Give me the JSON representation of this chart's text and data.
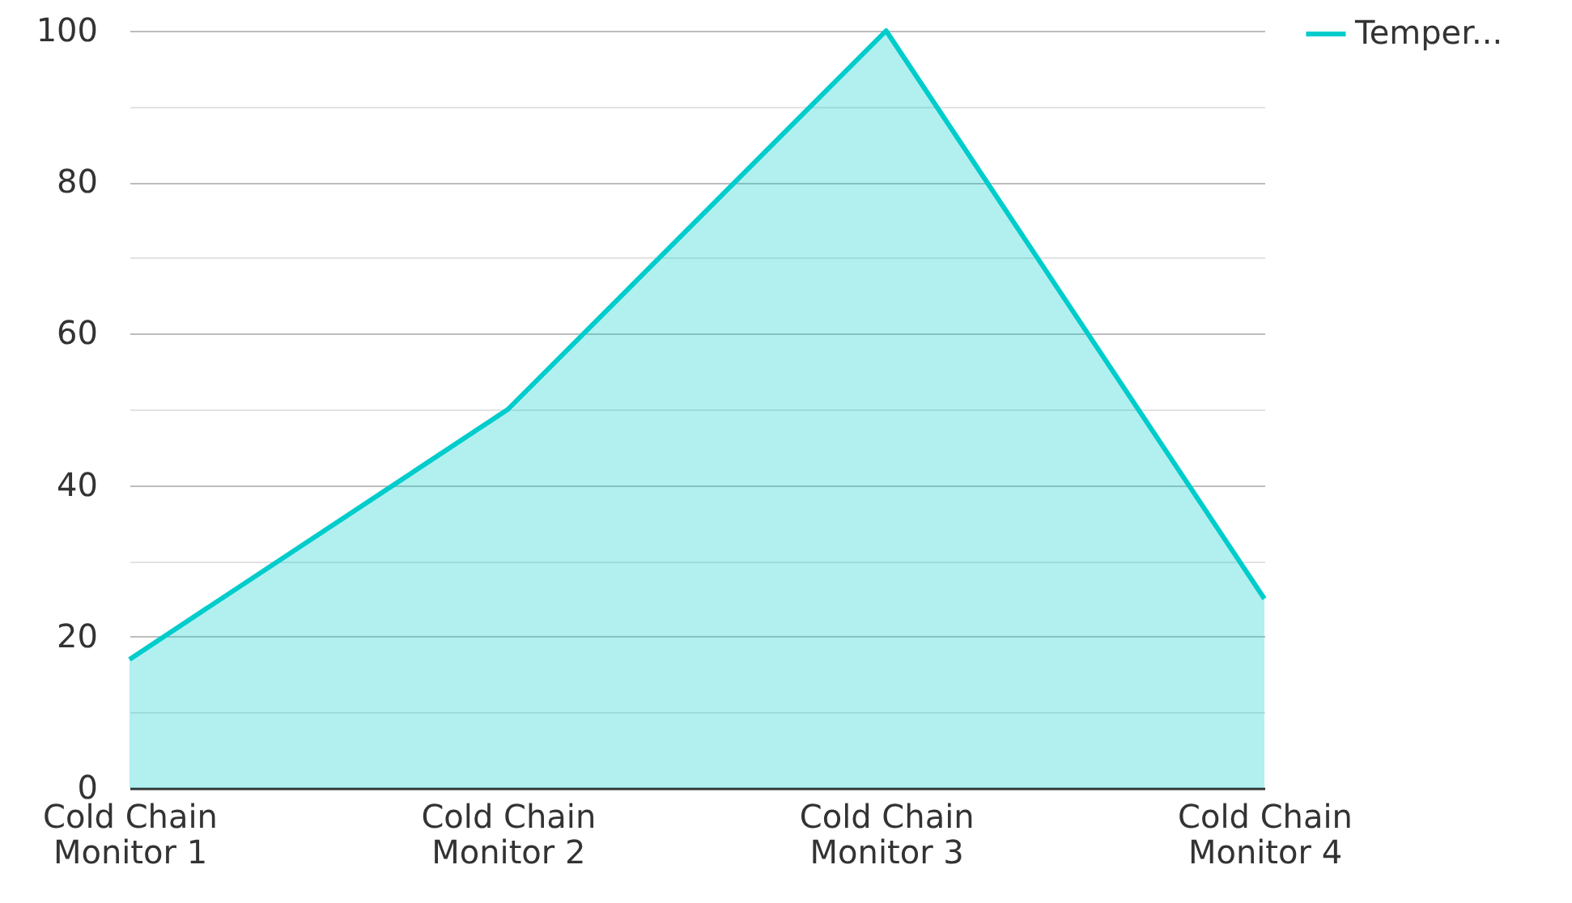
{
  "chart_data": {
    "type": "area",
    "categories": [
      "Cold Chain Monitor 1",
      "Cold Chain Monitor 2",
      "Cold Chain Monitor 3",
      "Cold Chain Monitor 4"
    ],
    "series": [
      {
        "name": "Temper...",
        "color": "#00cccc",
        "values": [
          17,
          50,
          100,
          25
        ]
      }
    ],
    "ylim": [
      0,
      100
    ],
    "yticks": [
      0,
      {
        "value": 10,
        "label": null
      },
      20,
      {
        "value": 30,
        "label": null
      },
      40,
      {
        "value": 50,
        "label": null
      },
      60,
      {
        "value": 70,
        "label": null
      },
      80,
      {
        "value": 90,
        "label": null
      },
      100
    ],
    "grid": "y",
    "legend": "top right"
  }
}
